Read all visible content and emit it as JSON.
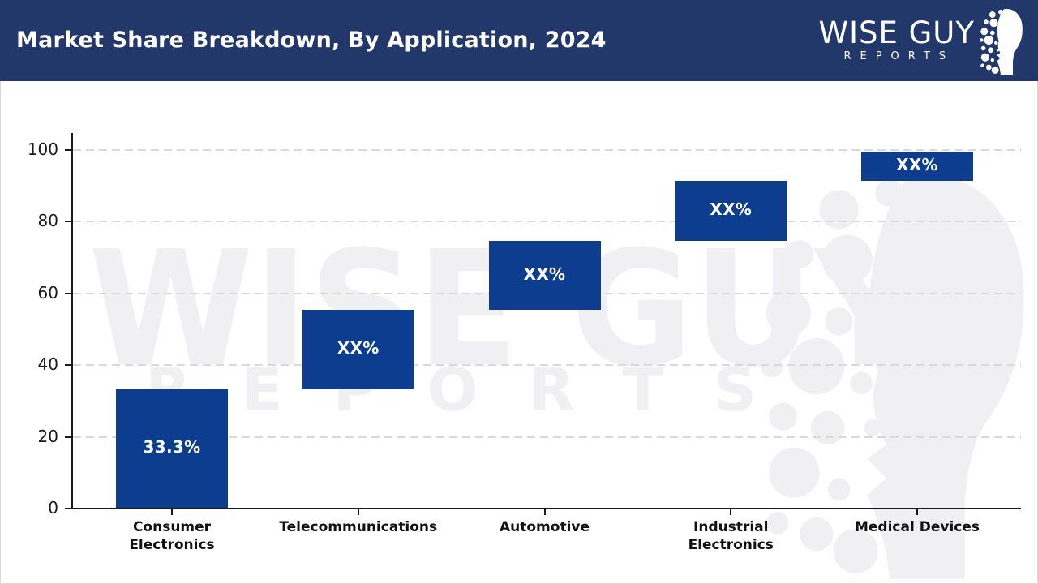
{
  "header": {
    "title": "Market Share Breakdown, By Application, 2024",
    "logo": {
      "name_top": "WISE GUY",
      "name_bottom": "REPORTS"
    }
  },
  "watermark": {
    "top": "WISE GUY",
    "bottom": "REPORTS"
  },
  "colors": {
    "header_bg": "#22386b",
    "bar_blue": "#0c3d8f",
    "grid_gray": "#d9d9d9",
    "axis_black": "#1a1a1a",
    "watermark_gray": "#f0f0f3",
    "bar_label_white": "#ffffff"
  },
  "chart_data": {
    "type": "bar",
    "subtype": "waterfall",
    "title": "Market Share Breakdown, By Application, 2024",
    "xlabel": "",
    "ylabel": "",
    "categories": [
      "Consumer Electronics",
      "Telecommunications",
      "Automotive",
      "Industrial Electronics",
      "Medical Devices"
    ],
    "category_labels": [
      "Consumer\nElectronics",
      "Telecommunications",
      "Automotive",
      "Industrial\nElectronics",
      "Medical Devices"
    ],
    "bars": [
      {
        "category": "Consumer Electronics",
        "label": "33.3%",
        "start": 0,
        "end": 33.3
      },
      {
        "category": "Telecommunications",
        "label": "XX%",
        "start": 33.3,
        "end": 55.4
      },
      {
        "category": "Automotive",
        "label": "XX%",
        "start": 55.4,
        "end": 74.6
      },
      {
        "category": "Industrial Electronics",
        "label": "XX%",
        "start": 74.6,
        "end": 91.3
      },
      {
        "category": "Medical Devices",
        "label": "XX%",
        "start": 91.3,
        "end": 99.5
      }
    ],
    "yticks": [
      0,
      20,
      40,
      60,
      80,
      100
    ],
    "ylim": [
      0,
      104.7
    ],
    "grid": "horizontal-dashed",
    "legend": "none"
  }
}
